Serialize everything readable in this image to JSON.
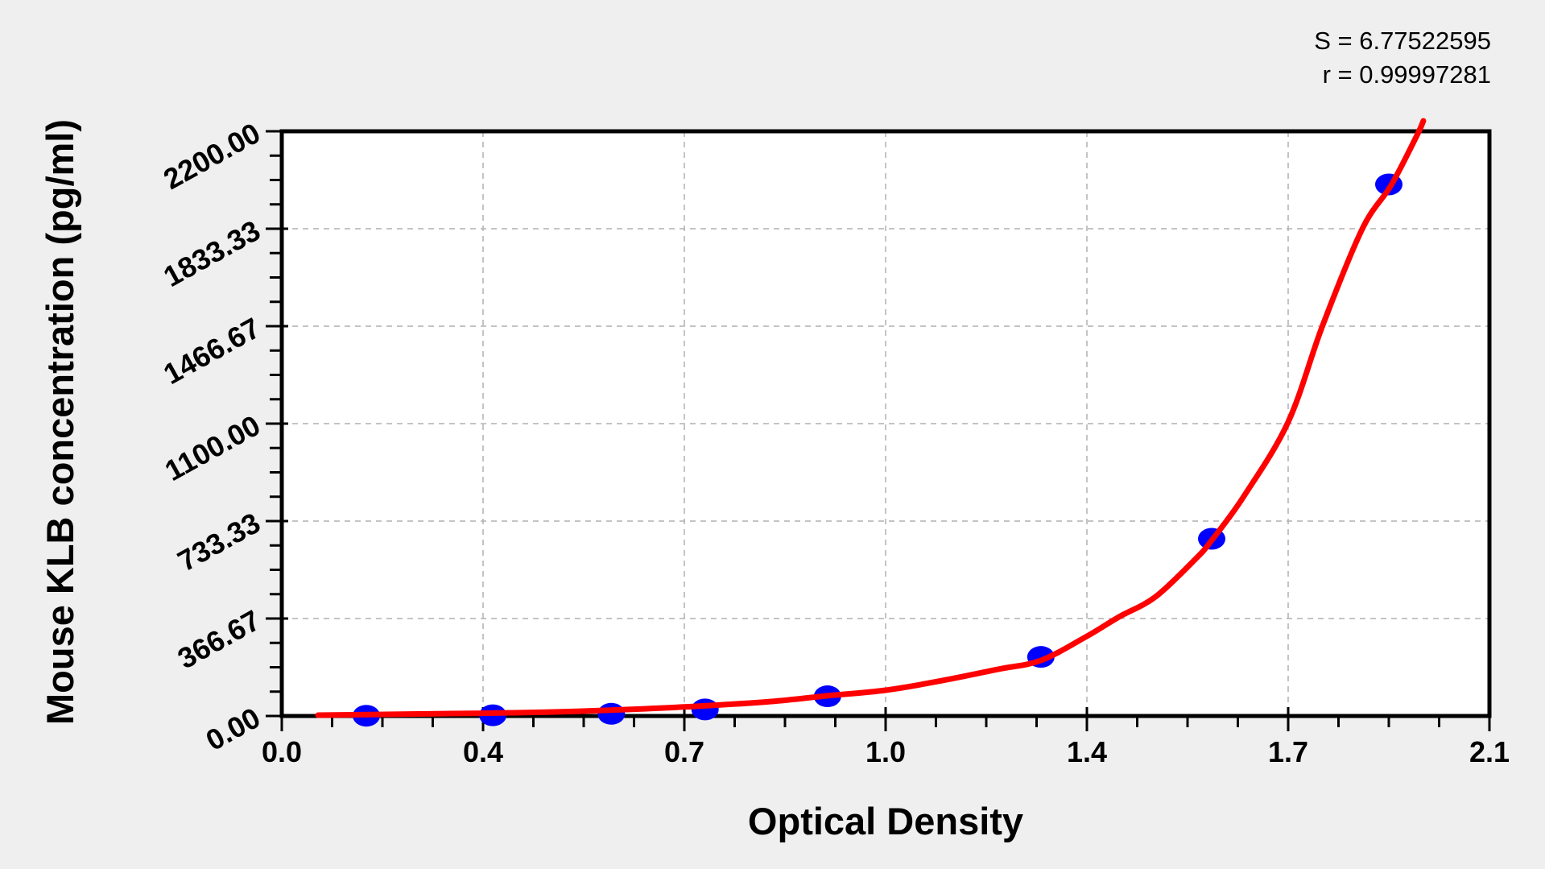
{
  "annotation": {
    "s_label": "S = 6.77522595",
    "r_label": "r = 0.99997281"
  },
  "chart_data": {
    "type": "scatter",
    "title": "",
    "xlabel": "Optical Density",
    "ylabel": "Mouse KLB concentration (pg/ml)",
    "legend": "none",
    "grid": "dashed-major-gridlines",
    "stats": {
      "S": "6.77522595",
      "r": "0.99997281"
    },
    "x_axis": {
      "range": [
        0,
        2.1
      ],
      "major_values": [
        0,
        0.35,
        0.7,
        1.05,
        1.4,
        1.75,
        2.1
      ],
      "major_labels": [
        "0.0",
        "0.4",
        "0.7",
        "1.0",
        "1.4",
        "1.7",
        "2.1"
      ],
      "minor_divisions": 4
    },
    "y_axis": {
      "range": [
        0,
        2200
      ],
      "major_values": [
        0,
        366.67,
        733.33,
        1100,
        1466.67,
        1833.33,
        2200
      ],
      "major_labels": [
        "0.00",
        "366.67",
        "733.33",
        "1100.00",
        "1466.67",
        "1833.33",
        "2200.00"
      ],
      "minor_divisions": 4
    },
    "points": [
      {
        "od": 0.147,
        "conc": 0.91
      },
      {
        "od": 0.367,
        "conc": 2.74
      },
      {
        "od": 0.573,
        "conc": 8.23
      },
      {
        "od": 0.736,
        "conc": 24.69
      },
      {
        "od": 0.949,
        "conc": 74.07
      },
      {
        "od": 1.32,
        "conc": 222.22
      },
      {
        "od": 1.617,
        "conc": 666.67
      },
      {
        "od": 1.925,
        "conc": 2000
      }
    ],
    "curve_points": [
      [
        0.063,
        3
      ],
      [
        0.182,
        6
      ],
      [
        0.294,
        9
      ],
      [
        0.406,
        12
      ],
      [
        0.518,
        18
      ],
      [
        0.63,
        27
      ],
      [
        0.742,
        39
      ],
      [
        0.854,
        55
      ],
      [
        0.949,
        76
      ],
      [
        1.05,
        97
      ],
      [
        1.148,
        133
      ],
      [
        1.246,
        176
      ],
      [
        1.32,
        209
      ],
      [
        1.4,
        300
      ],
      [
        1.456,
        373
      ],
      [
        1.519,
        448
      ],
      [
        1.589,
        591
      ],
      [
        1.617,
        661
      ],
      [
        1.673,
        827
      ],
      [
        1.75,
        1106
      ],
      [
        1.81,
        1470
      ],
      [
        1.879,
        1833
      ],
      [
        1.929,
        1997
      ],
      [
        1.974,
        2185
      ],
      [
        1.985,
        2239
      ]
    ],
    "colors": {
      "marker": "#0000ff",
      "curve": "#ff0000",
      "background": "#efefef",
      "plot_background": "#ffffff",
      "gridline": "#b0b0b0",
      "axis": "#000000"
    }
  }
}
